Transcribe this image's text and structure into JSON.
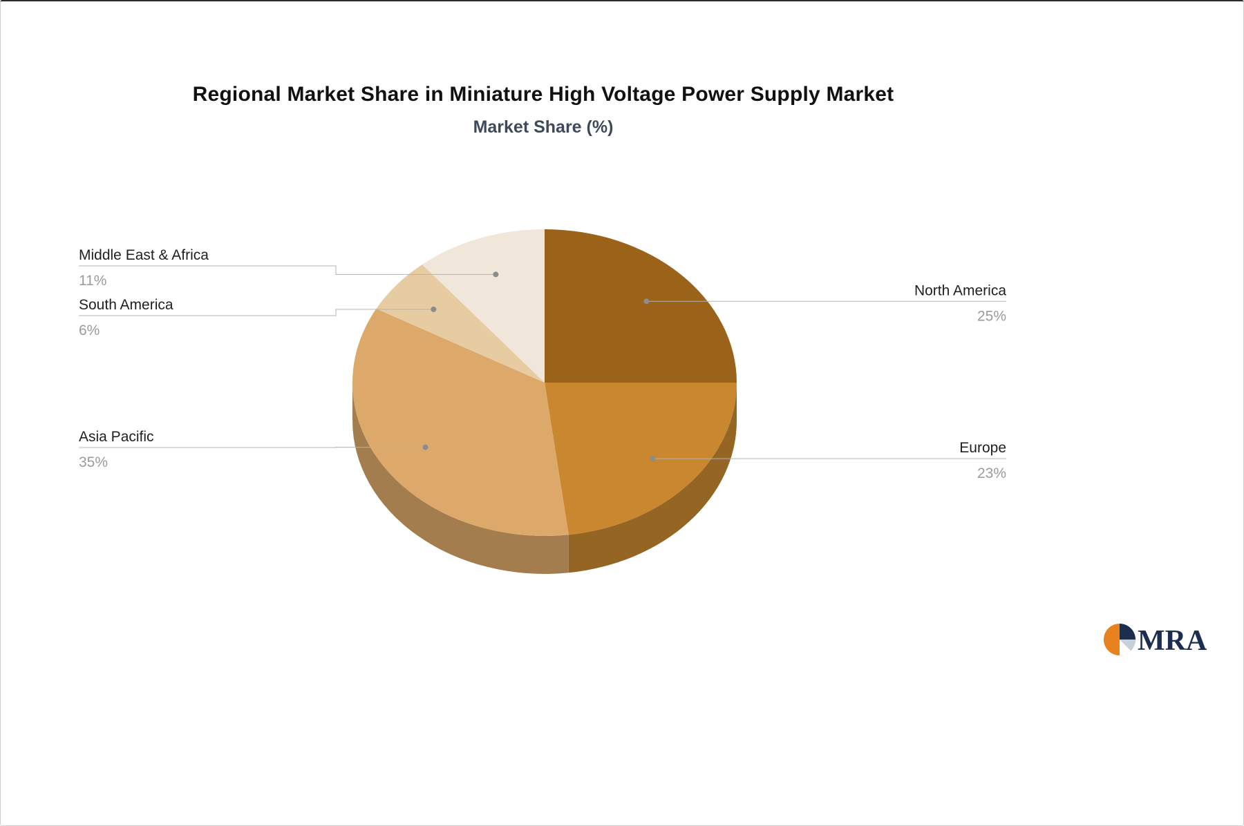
{
  "page": {
    "title": "Regional Market Share in Miniature High Voltage Power Supply Market",
    "subtitle": "Market Share (%)"
  },
  "logo": {
    "text": "MRA",
    "navy": "#1c2e4e",
    "orange": "#e8821e",
    "light": "#c7d1dc",
    "white": "#ffffff"
  },
  "chart_data": {
    "type": "pie",
    "title": "Regional Market Share in Miniature High Voltage Power Supply Market",
    "subtitle": "Market Share (%)",
    "unit": "%",
    "categories": [
      "North America",
      "Europe",
      "Asia Pacific",
      "South America",
      "Middle East & Africa"
    ],
    "values": [
      25,
      23,
      35,
      6,
      11
    ],
    "colors": [
      "#9b6219",
      "#c9882f",
      "#dca96a",
      "#e7cca2",
      "#f0e6da"
    ],
    "start_angle_deg": -90,
    "direction": "clockwise",
    "style": "3d",
    "label_sides": [
      "right",
      "right",
      "left",
      "left",
      "left"
    ],
    "label_text_color": "#1f1f1f",
    "value_text_color": "#9b9b9b",
    "leader_line_color": "#b3b3b3",
    "legend": "none",
    "grid": false
  }
}
